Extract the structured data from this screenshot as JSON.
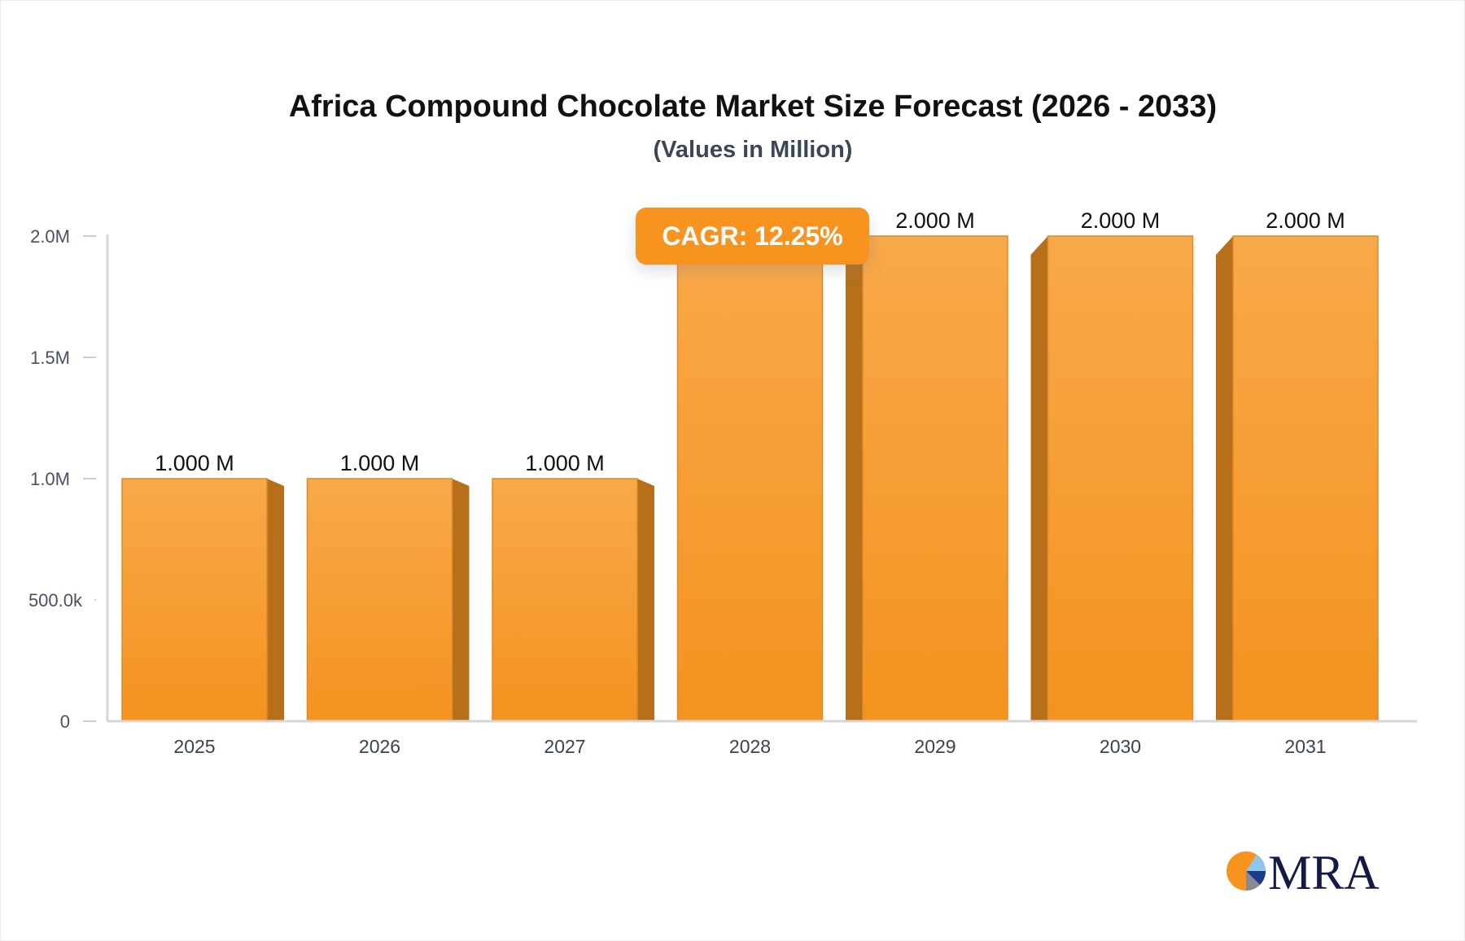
{
  "chart_data": {
    "type": "bar",
    "title": "Africa Compound Chocolate Market Size Forecast (2026 - 2033)",
    "subtitle": "(Values in Million)",
    "categories": [
      "2025",
      "2026",
      "2027",
      "2028",
      "2029",
      "2030",
      "2031"
    ],
    "values": [
      1000000,
      1000000,
      1000000,
      2000000,
      2000000,
      2000000,
      2000000
    ],
    "data_labels": [
      "1.000 M",
      "1.000 M",
      "1.000 M",
      "",
      "2.000 M",
      "2.000 M",
      "2.000 M"
    ],
    "yticks": [
      0,
      500000,
      1000000,
      1500000,
      2000000
    ],
    "ytick_labels": [
      "0",
      "500.0k",
      "1.0M",
      "1.5M",
      "2.0M"
    ],
    "ylim": [
      0,
      2000000
    ],
    "xlabel": "",
    "ylabel": "",
    "grid": false,
    "annotation": "CAGR: 12.25%",
    "colors": {
      "bar_top": "#f8a94a",
      "bar_bottom": "#f4931f",
      "bar_side": "#b86f1a",
      "bar_edge": "#e08a2a",
      "annotation_bg": "#f7931e",
      "axis": "#d4d6dc"
    }
  },
  "logo": {
    "text": "MRA"
  }
}
